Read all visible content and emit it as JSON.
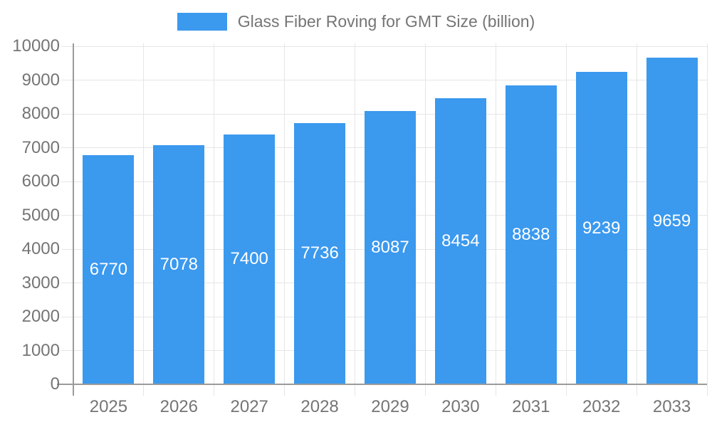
{
  "chart_data": {
    "type": "bar",
    "title": "Glass Fiber Roving for GMT Size (billion)",
    "legend_entries": [
      "Glass Fiber Roving for GMT Size (billion)"
    ],
    "legend_position": "top",
    "categories": [
      "2025",
      "2026",
      "2027",
      "2028",
      "2029",
      "2030",
      "2031",
      "2032",
      "2033"
    ],
    "values": [
      6770,
      7078,
      7400,
      7736,
      8087,
      8454,
      8838,
      9239,
      9659
    ],
    "value_labels": [
      "6770",
      "7078",
      "7400",
      "7736",
      "8087",
      "8454",
      "8838",
      "9239",
      "9659"
    ],
    "xlabel": "",
    "ylabel": "",
    "ylim": [
      0,
      10000
    ],
    "ytick_step": 1000,
    "ytick_labels": [
      "0",
      "1000",
      "2000",
      "3000",
      "4000",
      "5000",
      "6000",
      "7000",
      "8000",
      "9000",
      "10000"
    ],
    "grid": true,
    "colors": {
      "bar": "#3B99EE",
      "value_text": "#FFFFFF",
      "axis_text": "#757575",
      "legend_text": "#757575",
      "grid_line": "#E6E6E6",
      "axis_line": "#9B9B9B",
      "background": "#FFFFFF"
    }
  }
}
